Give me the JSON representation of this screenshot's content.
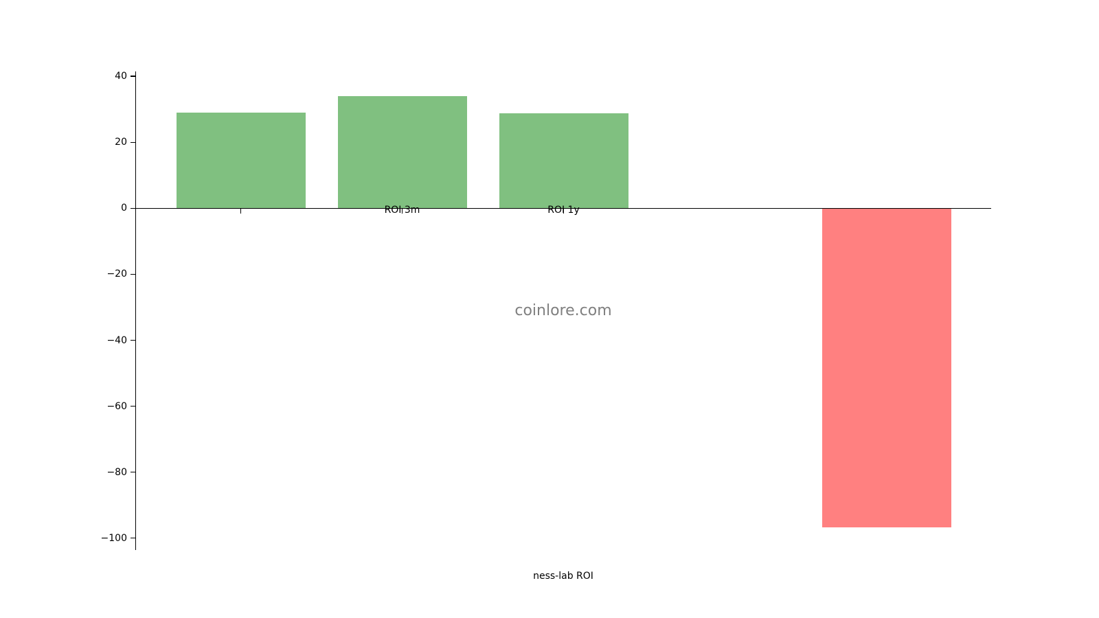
{
  "page": {
    "background": "#ffffff"
  },
  "chart_data": {
    "type": "bar",
    "title": "ness-lab ROI",
    "title_position": "bottom",
    "watermark": "coinlore.com",
    "num_slots": 5,
    "bars": [
      {
        "slot": 0,
        "x_label": "",
        "value": 29
      },
      {
        "slot": 1,
        "x_label": "ROI 3m",
        "value": 34
      },
      {
        "slot": 2,
        "x_label": "ROI 1y",
        "value": 28.7
      },
      {
        "slot": 4,
        "x_label": "",
        "value": -96.8
      }
    ],
    "xticks": [
      {
        "slot": 0,
        "label": ""
      },
      {
        "slot": 1,
        "label": "ROI 3m"
      },
      {
        "slot": 2,
        "label": "ROI 1y"
      }
    ],
    "yticks": [
      {
        "value": 40,
        "label": "40"
      },
      {
        "value": 20,
        "label": "20"
      },
      {
        "value": 0,
        "label": "0"
      },
      {
        "value": -20,
        "label": "−20"
      },
      {
        "value": -40,
        "label": "−40"
      },
      {
        "value": -60,
        "label": "−60"
      },
      {
        "value": -80,
        "label": "−80"
      },
      {
        "value": -100,
        "label": "−100"
      }
    ],
    "ylim": [
      -103.3,
      41.4
    ],
    "xlabel": "",
    "ylabel": "",
    "grid": false,
    "legend": false,
    "colors": {
      "positive_bar": "#80c080",
      "negative_bar": "#ff8080",
      "axis": "#000000",
      "tick_label": "#000000",
      "watermark": "#7f7f7f"
    }
  }
}
